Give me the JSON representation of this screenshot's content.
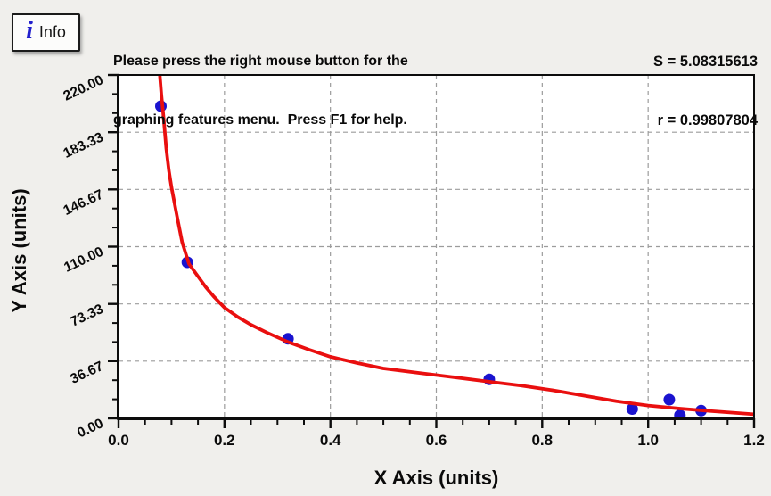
{
  "window": {
    "background": "#f0efec"
  },
  "header": {
    "info_button": {
      "icon_glyph": "i",
      "label": "Info"
    },
    "instructions": {
      "line1": "Please press the right mouse button for the",
      "line2": "graphing features menu.  Press F1 for help."
    },
    "fit_stats": {
      "s": "S = 5.08315613",
      "r": "r = 0.99807804"
    }
  },
  "chart_data": {
    "type": "scatter",
    "title": "",
    "xlabel": "X Axis (units)",
    "ylabel": "Y Axis (units)",
    "xlim": [
      0.0,
      1.2
    ],
    "ylim": [
      0.0,
      220.0
    ],
    "x_ticks": {
      "values": [
        0.0,
        0.2,
        0.4,
        0.6,
        0.8,
        1.0,
        1.2
      ],
      "labels": [
        "0.0",
        "0.2",
        "0.4",
        "0.6",
        "0.8",
        "1.0",
        "1.2"
      ],
      "minor_step": 0.05
    },
    "y_ticks": {
      "values": [
        0.0,
        36.67,
        73.33,
        110.0,
        146.67,
        183.33,
        220.0
      ],
      "labels": [
        "0.00",
        "36.67",
        "73.33",
        "110.00",
        "146.67",
        "183.33",
        "220.00"
      ],
      "minor_step": 12.2222
    },
    "grid": {
      "show": true,
      "style": "dashed",
      "color": "#9c9c9c"
    },
    "points": {
      "color": "#1a13cf",
      "xy": [
        [
          0.08,
          200
        ],
        [
          0.13,
          100
        ],
        [
          0.32,
          51
        ],
        [
          0.7,
          25
        ],
        [
          0.97,
          6
        ],
        [
          1.04,
          12
        ],
        [
          1.06,
          2
        ],
        [
          1.1,
          5
        ]
      ]
    },
    "fit_curve": {
      "color": "#e90f0f",
      "xy": [
        [
          0.078,
          220
        ],
        [
          0.081,
          207
        ],
        [
          0.085,
          193
        ],
        [
          0.09,
          173
        ],
        [
          0.095,
          159
        ],
        [
          0.1,
          148
        ],
        [
          0.11,
          130
        ],
        [
          0.12,
          113
        ],
        [
          0.133,
          99
        ],
        [
          0.15,
          91
        ],
        [
          0.165,
          84
        ],
        [
          0.18,
          78
        ],
        [
          0.2,
          71
        ],
        [
          0.225,
          65
        ],
        [
          0.25,
          60
        ],
        [
          0.28,
          55
        ],
        [
          0.32,
          49
        ],
        [
          0.36,
          44
        ],
        [
          0.4,
          39.5
        ],
        [
          0.45,
          35.5
        ],
        [
          0.5,
          32
        ],
        [
          0.57,
          29
        ],
        [
          0.63,
          26.5
        ],
        [
          0.7,
          23.5
        ],
        [
          0.76,
          21
        ],
        [
          0.82,
          18
        ],
        [
          0.88,
          14.5
        ],
        [
          0.94,
          11
        ],
        [
          1.0,
          8.2
        ],
        [
          1.06,
          6.3
        ],
        [
          1.12,
          4.6
        ],
        [
          1.2,
          2.6
        ]
      ]
    },
    "statistics": {
      "S": "5.08315613",
      "r": "0.99807804"
    }
  }
}
